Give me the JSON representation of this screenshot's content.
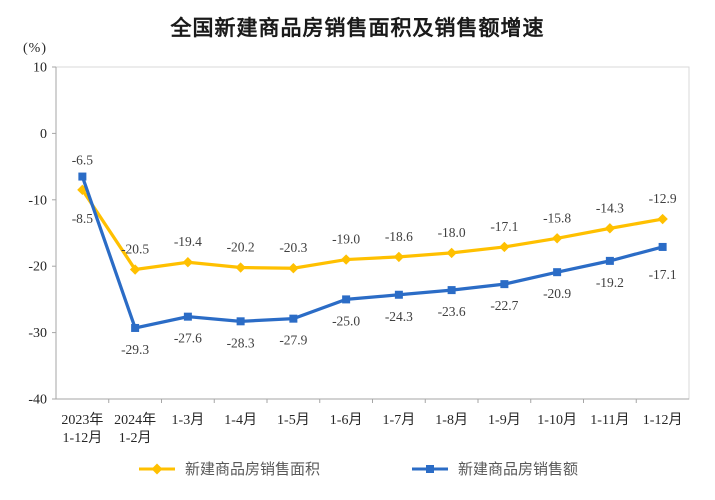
{
  "page": {
    "background": "#ffffff"
  },
  "chart_data": {
    "type": "line",
    "title": "全国新建商品房销售面积及销售额增速",
    "unit_label": "(%)",
    "categories": [
      "2023年\n1-12月",
      "2024年\n1-2月",
      "1-3月",
      "1-4月",
      "1-5月",
      "1-6月",
      "1-7月",
      "1-8月",
      "1-9月",
      "1-10月",
      "1-11月",
      "1-12月"
    ],
    "series": [
      {
        "name": "新建商品房销售面积",
        "color": "#FFC000",
        "marker": "diamond",
        "values": [
          -8.5,
          -20.5,
          -19.4,
          -20.2,
          -20.3,
          -19.0,
          -18.6,
          -18.0,
          -17.1,
          -15.8,
          -14.3,
          -12.9
        ]
      },
      {
        "name": "新建商品房销售额",
        "color": "#2B6CC6",
        "marker": "square",
        "values": [
          -6.5,
          -29.3,
          -27.6,
          -28.3,
          -27.9,
          -25.0,
          -24.3,
          -23.6,
          -22.7,
          -20.9,
          -19.2,
          -17.1
        ]
      }
    ],
    "ylim": [
      -40,
      10
    ],
    "yticks": [
      10,
      0,
      -10,
      -20,
      -30,
      -40
    ],
    "grid": "off",
    "legend_position": "bottom",
    "data_labels": "on",
    "axis_color": "#a6a6a6",
    "border_color": "#d9d9d9"
  }
}
